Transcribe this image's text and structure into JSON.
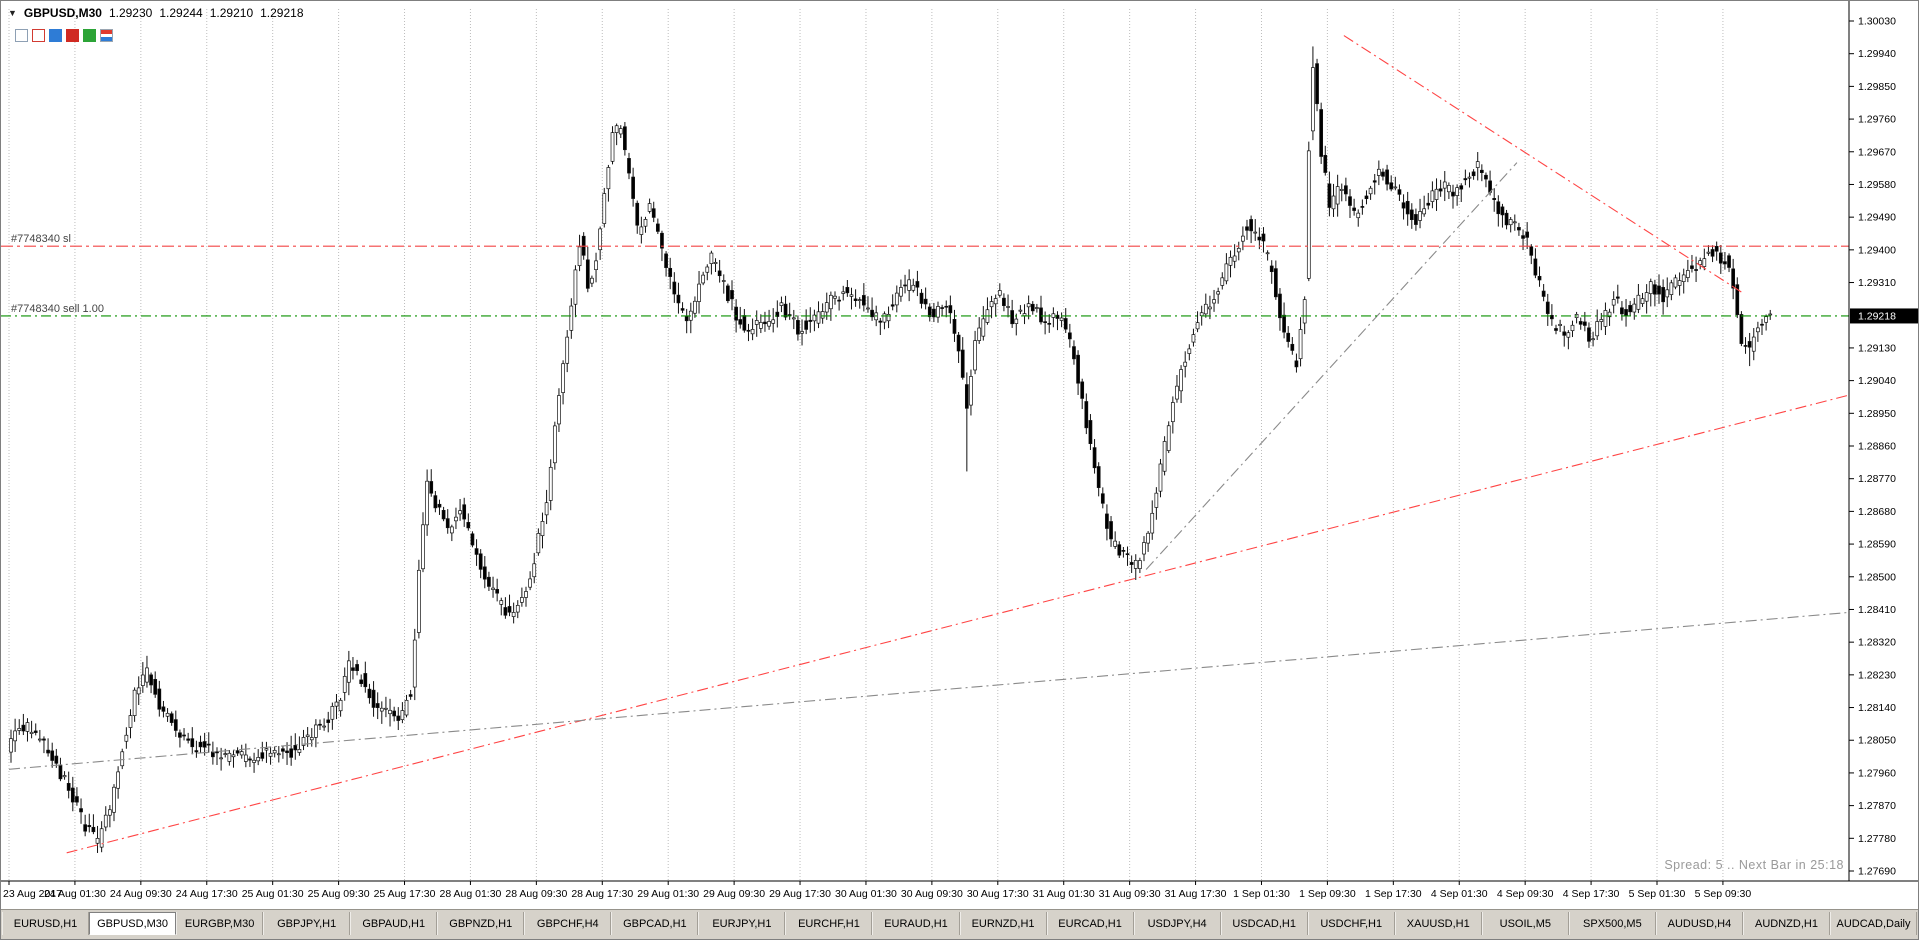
{
  "symbol_header": {
    "dropdown_icon": "▼",
    "symbol": "GBPUSD,M30",
    "open": "1.29230",
    "high": "1.29244",
    "low": "1.29210",
    "close": "1.29218"
  },
  "object_toolbar": {
    "swatches": [
      {
        "name": "swatch-white",
        "fill": "#ffffff",
        "border": "#8ea0b4"
      },
      {
        "name": "swatch-red-outline",
        "fill": "#ffffff",
        "border": "#d23b32"
      },
      {
        "name": "swatch-blue",
        "fill": "#2e7cd6",
        "border": "#2e7cd6"
      },
      {
        "name": "swatch-red",
        "fill": "#d02a22",
        "border": "#d02a22"
      },
      {
        "name": "swatch-green",
        "fill": "#2ca437",
        "border": "#2ca437"
      },
      {
        "name": "swatch-flag",
        "stripes": [
          "#e03a2e",
          "#ffffff",
          "#2e7cd6"
        ]
      }
    ]
  },
  "order_lines": [
    {
      "name": "stop-loss-line",
      "label": "#7748340 sl",
      "price": 1.2941,
      "color": "#f34545",
      "dash": "12,4,3,4"
    },
    {
      "name": "sell-position-line",
      "label": "#7748340 sell 1.00",
      "price": 1.29218,
      "color": "#0a9000",
      "dash": "10,4,2,4"
    }
  ],
  "status": {
    "info_text": "Spread: 5 .. Next Bar in 25:18"
  },
  "price_axis": {
    "current_price": "1.29218",
    "axis_color": "#000000",
    "current_price_bg": "#000000",
    "current_price_fg": "#ffffff",
    "ticks": [
      "1.30030",
      "1.29940",
      "1.29850",
      "1.29760",
      "1.29670",
      "1.29580",
      "1.29490",
      "1.29400",
      "1.29310",
      "1.29130",
      "1.29040",
      "1.28950",
      "1.28860",
      "1.28770",
      "1.28680",
      "1.28590",
      "1.28500",
      "1.28410",
      "1.28320",
      "1.28230",
      "1.28140",
      "1.28050",
      "1.27960",
      "1.27870",
      "1.27780",
      "1.27690"
    ]
  },
  "time_axis": {
    "labels": [
      "23 Aug 2017",
      "24 Aug 01:30",
      "24 Aug 09:30",
      "24 Aug 17:30",
      "25 Aug 01:30",
      "25 Aug 09:30",
      "25 Aug 17:30",
      "28 Aug 01:30",
      "28 Aug 09:30",
      "28 Aug 17:30",
      "29 Aug 01:30",
      "29 Aug 09:30",
      "29 Aug 17:30",
      "30 Aug 01:30",
      "30 Aug 09:30",
      "30 Aug 17:30",
      "31 Aug 01:30",
      "31 Aug 09:30",
      "31 Aug 17:30",
      "1 Sep 01:30",
      "1 Sep 09:30",
      "1 Sep 17:30",
      "4 Sep 01:30",
      "4 Sep 09:30",
      "4 Sep 17:30",
      "5 Sep 01:30",
      "5 Sep 09:30"
    ]
  },
  "tabs": {
    "items": [
      {
        "label": "EURUSD,H1"
      },
      {
        "label": "GBPUSD,M30",
        "active": true
      },
      {
        "label": "EURGBP,M30"
      },
      {
        "label": "GBPJPY,H1"
      },
      {
        "label": "GBPAUD,H1"
      },
      {
        "label": "GBPNZD,H1"
      },
      {
        "label": "GBPCHF,H4"
      },
      {
        "label": "GBPCAD,H1"
      },
      {
        "label": "EURJPY,H1"
      },
      {
        "label": "EURCHF,H1"
      },
      {
        "label": "EURAUD,H1"
      },
      {
        "label": "EURNZD,H1"
      },
      {
        "label": "EURCAD,H1"
      },
      {
        "label": "USDJPY,H4"
      },
      {
        "label": "USDCAD,H1"
      },
      {
        "label": "USDCHF,H1"
      },
      {
        "label": "XAUUSD,H1"
      },
      {
        "label": "USOIL,M5"
      },
      {
        "label": "SPX500,M5"
      },
      {
        "label": "AUDUSD,H4"
      },
      {
        "label": "AUDNZD,H1"
      },
      {
        "label": "AUDCAD,Daily"
      }
    ]
  },
  "chart_data": {
    "type": "candlestick",
    "symbol": "GBPUSD",
    "timeframe": "M30",
    "price_range": [
      1.2769,
      1.3003
    ],
    "bars_total": 428,
    "bars_per_gridline": 16,
    "grid": "vertical-dotted",
    "grid_color": "#bdbdbd",
    "candle_colors": {
      "bull": "#ffffff",
      "bear": "#000000",
      "outline": "#111111"
    },
    "price_path_anchors": [
      [
        0,
        1.2803
      ],
      [
        4,
        1.2809
      ],
      [
        8,
        1.2806
      ],
      [
        12,
        1.2798
      ],
      [
        16,
        1.2789
      ],
      [
        19,
        1.2781
      ],
      [
        22,
        1.2777
      ],
      [
        25,
        1.2786
      ],
      [
        28,
        1.2803
      ],
      [
        31,
        1.2818
      ],
      [
        34,
        1.2824
      ],
      [
        37,
        1.2815
      ],
      [
        40,
        1.281
      ],
      [
        44,
        1.2804
      ],
      [
        48,
        1.2803
      ],
      [
        52,
        1.28
      ],
      [
        56,
        1.2801
      ],
      [
        60,
        1.2799
      ],
      [
        64,
        1.2803
      ],
      [
        68,
        1.2801
      ],
      [
        72,
        1.2805
      ],
      [
        76,
        1.2809
      ],
      [
        80,
        1.2814
      ],
      [
        83,
        1.2826
      ],
      [
        86,
        1.2822
      ],
      [
        89,
        1.2815
      ],
      [
        92,
        1.2812
      ],
      [
        95,
        1.2811
      ],
      [
        98,
        1.2818
      ],
      [
        100,
        1.2852
      ],
      [
        102,
        1.2877
      ],
      [
        104,
        1.287
      ],
      [
        107,
        1.2862
      ],
      [
        110,
        1.2869
      ],
      [
        113,
        1.2858
      ],
      [
        116,
        1.285
      ],
      [
        119,
        1.2844
      ],
      [
        122,
        1.2839
      ],
      [
        125,
        1.2843
      ],
      [
        128,
        1.2855
      ],
      [
        131,
        1.2872
      ],
      [
        134,
        1.29
      ],
      [
        137,
        1.2925
      ],
      [
        139,
        1.2943
      ],
      [
        141,
        1.293
      ],
      [
        143,
        1.2938
      ],
      [
        145,
        1.2955
      ],
      [
        147,
        1.2972
      ],
      [
        149,
        1.2975
      ],
      [
        151,
        1.296
      ],
      [
        153,
        1.2945
      ],
      [
        156,
        1.2952
      ],
      [
        159,
        1.294
      ],
      [
        162,
        1.2928
      ],
      [
        165,
        1.2921
      ],
      [
        168,
        1.293
      ],
      [
        171,
        1.2938
      ],
      [
        174,
        1.293
      ],
      [
        177,
        1.2922
      ],
      [
        180,
        1.2918
      ],
      [
        184,
        1.292
      ],
      [
        188,
        1.2924
      ],
      [
        192,
        1.2918
      ],
      [
        196,
        1.2921
      ],
      [
        200,
        1.2926
      ],
      [
        204,
        1.2929
      ],
      [
        208,
        1.2925
      ],
      [
        212,
        1.292
      ],
      [
        216,
        1.2928
      ],
      [
        220,
        1.2931
      ],
      [
        224,
        1.2922
      ],
      [
        228,
        1.2926
      ],
      [
        231,
        1.2913
      ],
      [
        233,
        1.2897
      ],
      [
        235,
        1.2914
      ],
      [
        238,
        1.2924
      ],
      [
        241,
        1.2928
      ],
      [
        244,
        1.2921
      ],
      [
        248,
        1.2925
      ],
      [
        252,
        1.292
      ],
      [
        256,
        1.2922
      ],
      [
        259,
        1.291
      ],
      [
        262,
        1.2892
      ],
      [
        265,
        1.2873
      ],
      [
        268,
        1.286
      ],
      [
        271,
        1.2856
      ],
      [
        274,
        1.2853
      ],
      [
        277,
        1.2861
      ],
      [
        280,
        1.288
      ],
      [
        283,
        1.2898
      ],
      [
        286,
        1.291
      ],
      [
        289,
        1.292
      ],
      [
        292,
        1.2926
      ],
      [
        295,
        1.2932
      ],
      [
        298,
        1.294
      ],
      [
        301,
        1.2947
      ],
      [
        304,
        1.2944
      ],
      [
        307,
        1.2934
      ],
      [
        310,
        1.2916
      ],
      [
        313,
        1.2908
      ],
      [
        315,
        1.2928
      ],
      [
        316,
        1.297
      ],
      [
        317,
        1.2992
      ],
      [
        319,
        1.2966
      ],
      [
        321,
        1.2952
      ],
      [
        324,
        1.2958
      ],
      [
        327,
        1.295
      ],
      [
        330,
        1.2955
      ],
      [
        333,
        1.2962
      ],
      [
        336,
        1.2958
      ],
      [
        339,
        1.2952
      ],
      [
        342,
        1.2948
      ],
      [
        345,
        1.2953
      ],
      [
        348,
        1.2958
      ],
      [
        351,
        1.2955
      ],
      [
        354,
        1.296
      ],
      [
        357,
        1.2963
      ],
      [
        360,
        1.2955
      ],
      [
        363,
        1.2949
      ],
      [
        366,
        1.2946
      ],
      [
        369,
        1.2942
      ],
      [
        372,
        1.293
      ],
      [
        375,
        1.292
      ],
      [
        378,
        1.2917
      ],
      [
        381,
        1.2922
      ],
      [
        384,
        1.2916
      ],
      [
        387,
        1.292
      ],
      [
        390,
        1.2926
      ],
      [
        393,
        1.2923
      ],
      [
        396,
        1.2926
      ],
      [
        399,
        1.293
      ],
      [
        402,
        1.2927
      ],
      [
        405,
        1.2931
      ],
      [
        408,
        1.2934
      ],
      [
        411,
        1.2937
      ],
      [
        414,
        1.294
      ],
      [
        417,
        1.2937
      ],
      [
        419,
        1.293
      ],
      [
        421,
        1.2915
      ],
      [
        423,
        1.2912
      ],
      [
        425,
        1.292
      ],
      [
        427,
        1.2922
      ]
    ],
    "wick_marks": [
      {
        "bar": 22,
        "side": "low",
        "price": 1.2776
      },
      {
        "bar": 232,
        "side": "low",
        "price": 1.2879
      },
      {
        "bar": 316,
        "side": "high",
        "price": 1.2996
      },
      {
        "bar": 422,
        "side": "low",
        "price": 1.2908
      }
    ],
    "trend_lines": [
      {
        "name": "rising-support-red",
        "color": "#ff4444",
        "dash": "11,4,2,4",
        "from": [
          14,
          1.2774
        ],
        "to": [
          450,
          1.2901
        ]
      },
      {
        "name": "falling-resistance-red",
        "color": "#ff4444",
        "dash": "11,4,2,4",
        "from": [
          324,
          1.2999
        ],
        "to": [
          421,
          1.2928
        ]
      },
      {
        "name": "rising-steep-gray",
        "color": "#8a8a8a",
        "dash": "11,4,2,4",
        "from": [
          276,
          1.2852
        ],
        "to": [
          366,
          1.2964
        ]
      },
      {
        "name": "rising-shallow-gray",
        "color": "#8a8a8a",
        "dash": "11,4,2,4",
        "from": [
          0,
          1.2797
        ],
        "to": [
          455,
          1.2841
        ]
      }
    ]
  }
}
